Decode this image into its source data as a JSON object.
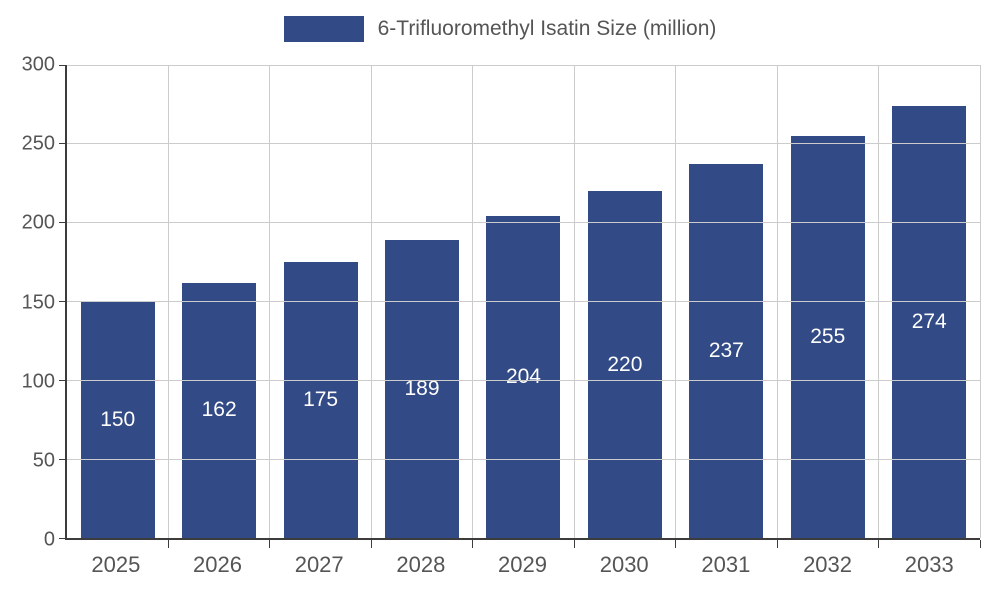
{
  "legend": {
    "label": "6-Trifluoromethyl Isatin Size (million)"
  },
  "chart_data": {
    "type": "bar",
    "title": "",
    "xlabel": "",
    "ylabel": "",
    "categories": [
      "2025",
      "2026",
      "2027",
      "2028",
      "2029",
      "2030",
      "2031",
      "2032",
      "2033"
    ],
    "values": [
      150,
      162,
      175,
      189,
      204,
      220,
      237,
      255,
      274
    ],
    "series_name": "6-Trifluoromethyl Isatin Size (million)",
    "ylim": [
      0,
      300
    ],
    "yticks": [
      0,
      50,
      100,
      150,
      200,
      250,
      300
    ],
    "bar_color": "#324a85",
    "grid": true,
    "legend_position": "top",
    "value_labels": "inside-center-white"
  }
}
